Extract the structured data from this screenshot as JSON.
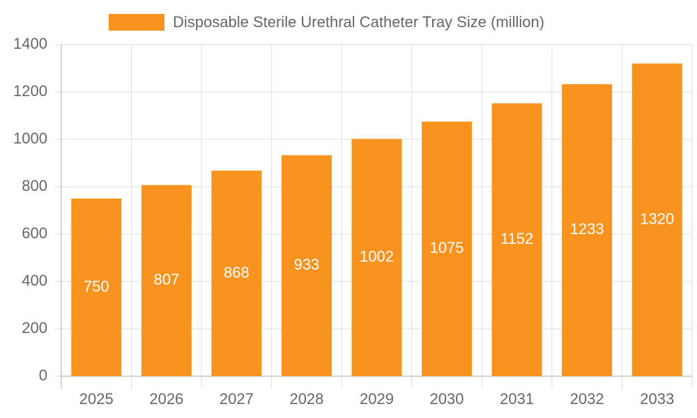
{
  "chart_data": {
    "type": "bar",
    "categories": [
      "2025",
      "2026",
      "2027",
      "2028",
      "2029",
      "2030",
      "2031",
      "2032",
      "2033"
    ],
    "series": [
      {
        "name": "Disposable Sterile Urethral Catheter Tray Size (million)",
        "color": "#f7931e",
        "values": [
          750,
          807,
          868,
          933,
          1002,
          1075,
          1152,
          1233,
          1320
        ]
      }
    ],
    "ylim": [
      0,
      1400
    ],
    "yticks": [
      0,
      200,
      400,
      600,
      800,
      1000,
      1200,
      1400
    ],
    "grid": true,
    "legend": "top"
  }
}
